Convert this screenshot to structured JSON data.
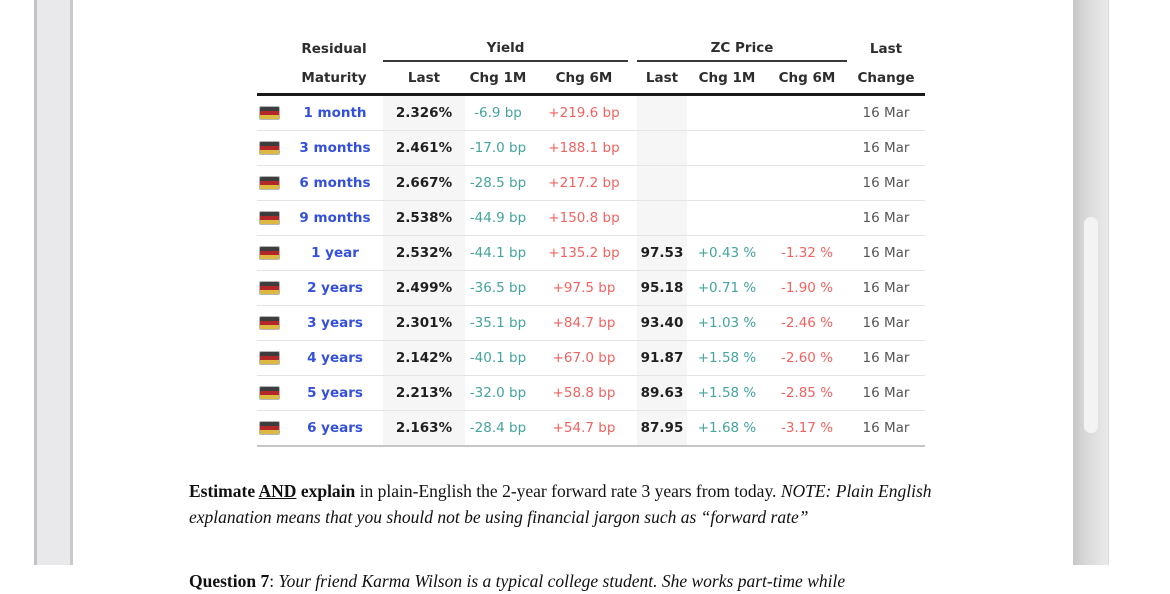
{
  "table": {
    "flag_icon": "germany-flag-icon",
    "headers": {
      "residual_line1": "Residual",
      "residual_line2": "Maturity",
      "yield_group": "Yield",
      "zc_group": "ZC Price",
      "col_last": "Last",
      "col_chg_1m": "Chg 1M",
      "col_chg_6m": "Chg 6M",
      "last_change_line1": "Last",
      "last_change_line2": "Change"
    },
    "rows": [
      {
        "maturity": "1 month",
        "yield_last": "2.326%",
        "yield_chg_1m": "-6.9 bp",
        "yield_chg_6m": "+219.6 bp",
        "zc_last": "",
        "zc_chg_1m": "",
        "zc_chg_6m": "",
        "last_change": "16 Mar"
      },
      {
        "maturity": "3 months",
        "yield_last": "2.461%",
        "yield_chg_1m": "-17.0 bp",
        "yield_chg_6m": "+188.1 bp",
        "zc_last": "",
        "zc_chg_1m": "",
        "zc_chg_6m": "",
        "last_change": "16 Mar"
      },
      {
        "maturity": "6 months",
        "yield_last": "2.667%",
        "yield_chg_1m": "-28.5 bp",
        "yield_chg_6m": "+217.2 bp",
        "zc_last": "",
        "zc_chg_1m": "",
        "zc_chg_6m": "",
        "last_change": "16 Mar"
      },
      {
        "maturity": "9 months",
        "yield_last": "2.538%",
        "yield_chg_1m": "-44.9 bp",
        "yield_chg_6m": "+150.8 bp",
        "zc_last": "",
        "zc_chg_1m": "",
        "zc_chg_6m": "",
        "last_change": "16 Mar"
      },
      {
        "maturity": "1 year",
        "yield_last": "2.532%",
        "yield_chg_1m": "-44.1 bp",
        "yield_chg_6m": "+135.2 bp",
        "zc_last": "97.53",
        "zc_chg_1m": "+0.43 %",
        "zc_chg_6m": "-1.32 %",
        "last_change": "16 Mar"
      },
      {
        "maturity": "2 years",
        "yield_last": "2.499%",
        "yield_chg_1m": "-36.5 bp",
        "yield_chg_6m": "+97.5 bp",
        "zc_last": "95.18",
        "zc_chg_1m": "+0.71 %",
        "zc_chg_6m": "-1.90 %",
        "last_change": "16 Mar"
      },
      {
        "maturity": "3 years",
        "yield_last": "2.301%",
        "yield_chg_1m": "-35.1 bp",
        "yield_chg_6m": "+84.7 bp",
        "zc_last": "93.40",
        "zc_chg_1m": "+1.03 %",
        "zc_chg_6m": "-2.46 %",
        "last_change": "16 Mar"
      },
      {
        "maturity": "4 years",
        "yield_last": "2.142%",
        "yield_chg_1m": "-40.1 bp",
        "yield_chg_6m": "+67.0 bp",
        "zc_last": "91.87",
        "zc_chg_1m": "+1.58 %",
        "zc_chg_6m": "-2.60 %",
        "last_change": "16 Mar"
      },
      {
        "maturity": "5 years",
        "yield_last": "2.213%",
        "yield_chg_1m": "-32.0 bp",
        "yield_chg_6m": "+58.8 bp",
        "zc_last": "89.63",
        "zc_chg_1m": "+1.58 %",
        "zc_chg_6m": "-2.85 %",
        "last_change": "16 Mar"
      },
      {
        "maturity": "6 years",
        "yield_last": "2.163%",
        "yield_chg_1m": "-28.4 bp",
        "yield_chg_6m": "+54.7 bp",
        "zc_last": "87.95",
        "zc_chg_1m": "+1.68 %",
        "zc_chg_6m": "-3.17 %",
        "last_change": "16 Mar"
      }
    ]
  },
  "document": {
    "q6": {
      "bold_lead": "Estimate ",
      "bold_underlined": "AND",
      "bold_tail": " explain",
      "regular": " in plain-English the 2-year forward rate 3 years from today. ",
      "note_italic": "NOTE: Plain English explanation means that you should not be using financial jargon such as “forward rate”"
    },
    "q7": {
      "bold": "Question 7",
      "sep": ": ",
      "italic": "Your friend Karma Wilson is a typical college student. She works part-time while"
    }
  },
  "colors": {
    "maturity_link_blue": "#3450db",
    "change_positive_teal": "#45a49d",
    "change_negative_red": "#ef6461",
    "highlight_column_gray": "#f6f6f6",
    "flag_black": "#3d3d3d",
    "flag_red": "#b22727",
    "flag_gold": "#ddb942"
  }
}
